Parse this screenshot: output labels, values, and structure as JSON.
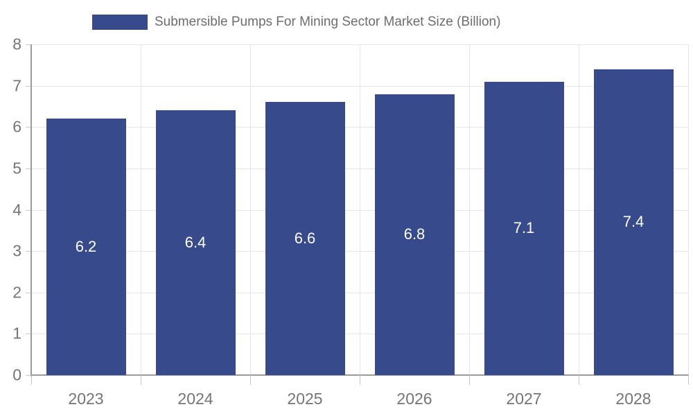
{
  "chart_data": {
    "type": "bar",
    "title": "Submersible Pumps For Mining Sector Market Size (Billion)",
    "categories": [
      "2023",
      "2024",
      "2025",
      "2026",
      "2027",
      "2028"
    ],
    "values": [
      6.2,
      6.4,
      6.6,
      6.8,
      7.1,
      7.4
    ],
    "bar_labels": [
      "6.2",
      "6.4",
      "6.6",
      "6.8",
      "7.1",
      "7.4"
    ],
    "xlabel": "",
    "ylabel": "",
    "ylim": [
      0,
      8
    ],
    "yticks": [
      0,
      1,
      2,
      3,
      4,
      5,
      6,
      7,
      8
    ],
    "grid": true,
    "legend_position": "top-center",
    "colors": {
      "bar": "#374b8c",
      "bar_label": "#ffffff",
      "grid": "#e6e6e6",
      "axis": "#9b9b9b",
      "tick": "#c6c6c6",
      "tick_label": "#757575",
      "legend_text": "#6d6d6d",
      "background": "#ffffff"
    }
  }
}
